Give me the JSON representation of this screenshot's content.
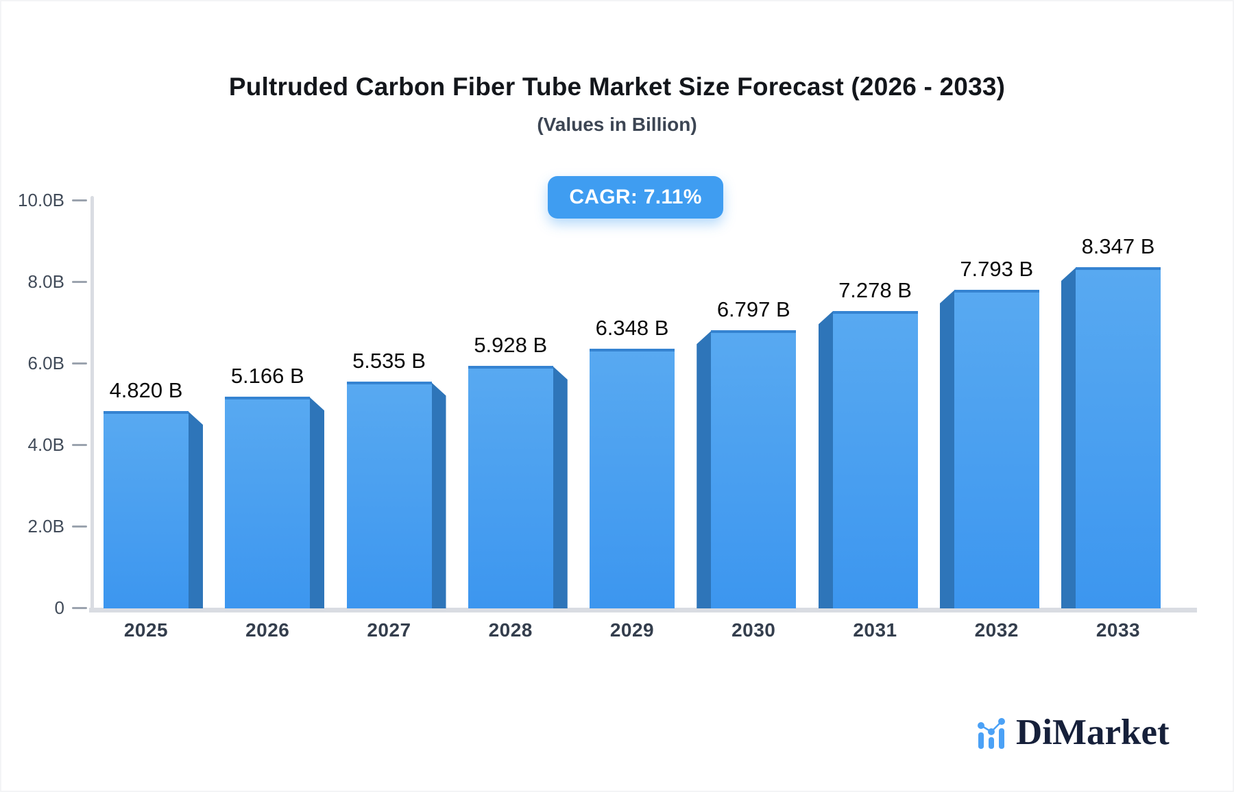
{
  "title": "Pultruded Carbon Fiber Tube Market Size Forecast (2026 - 2033)",
  "subtitle": "(Values in Billion)",
  "badge": {
    "label": "CAGR: 7.11%",
    "bg_color": "#3f9df1",
    "text_color": "#ffffff"
  },
  "chart_data": {
    "type": "bar",
    "title": "Pultruded Carbon Fiber Tube Market Size Forecast (2026 - 2033)",
    "subtitle": "(Values in Billion)",
    "categories": [
      "2025",
      "2026",
      "2027",
      "2028",
      "2029",
      "2030",
      "2031",
      "2032",
      "2033"
    ],
    "values": [
      4.82,
      5.166,
      5.535,
      5.928,
      6.348,
      6.797,
      7.278,
      7.793,
      8.347
    ],
    "value_labels": [
      "4.820 B",
      "5.166 B",
      "5.535 B",
      "5.928 B",
      "6.348 B",
      "6.797 B",
      "7.278 B",
      "7.793 B",
      "8.347 B"
    ],
    "unit": "Billion",
    "xlabel": "",
    "ylabel": "",
    "ylim": [
      0,
      10
    ],
    "ytick_labels": [
      "10.0B",
      "8.0B",
      "6.0B",
      "4.0B",
      "2.0B",
      "0"
    ],
    "ytick_values": [
      10,
      8,
      6,
      4,
      2,
      0
    ],
    "grid": false,
    "legend": false,
    "bar_style": {
      "face_top_color": "#58a9f1",
      "face_bottom_color": "#3c96ef",
      "top_edge_color": "#3583d1",
      "side_3d_color": "#2e75b9",
      "perspective": "sides face away from center bar 2029"
    }
  },
  "logo": {
    "text": "DiMarket",
    "icon": "bar-chart-logo-icon",
    "text_color": "#16203a",
    "icon_color": "#4ba1f6"
  }
}
